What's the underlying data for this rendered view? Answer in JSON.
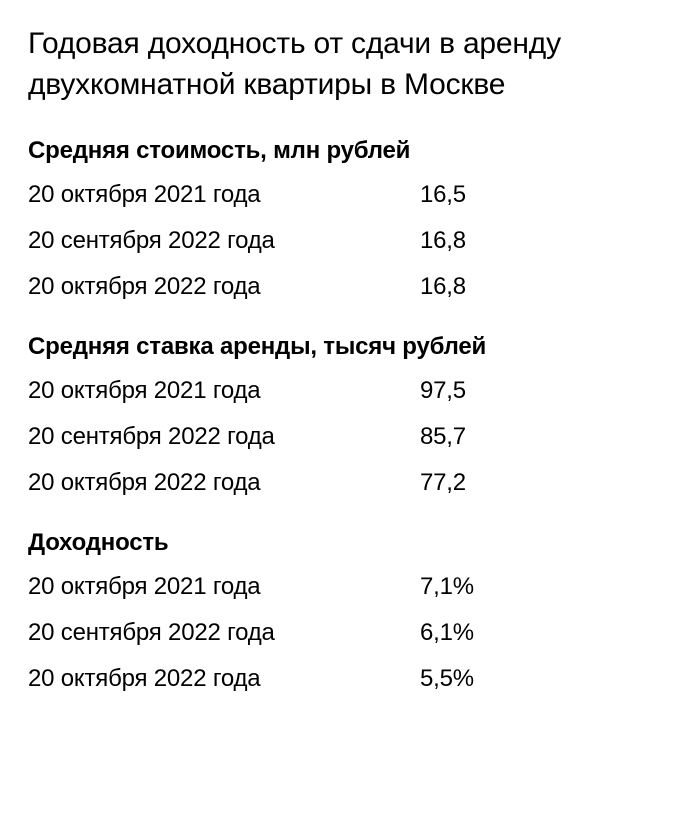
{
  "title": "Годовая доходность от сдачи в аренду двухкомнатной квартиры в Москве",
  "sections": [
    {
      "header": "Средняя стоимость, млн рублей",
      "rows": [
        {
          "label": "20 октября 2021 года",
          "value": "16,5"
        },
        {
          "label": "20 сентября 2022 года",
          "value": "16,8"
        },
        {
          "label": "20 октября 2022 года",
          "value": "16,8"
        }
      ]
    },
    {
      "header": "Средняя ставка аренды, тысяч рублей",
      "rows": [
        {
          "label": "20 октября 2021 года",
          "value": "97,5"
        },
        {
          "label": "20 сентября 2022 года",
          "value": "85,7"
        },
        {
          "label": "20 октября 2022 года",
          "value": "77,2"
        }
      ]
    },
    {
      "header": "Доходность",
      "rows": [
        {
          "label": "20 октября 2021 года",
          "value": "7,1%"
        },
        {
          "label": "20 сентября 2022 года",
          "value": "6,1%"
        },
        {
          "label": "20 октября 2022 года",
          "value": "5,5%"
        }
      ]
    }
  ],
  "styling": {
    "background_color": "#ffffff",
    "text_color": "#000000",
    "title_fontsize": 30,
    "title_fontweight": 400,
    "header_fontsize": 24,
    "header_fontweight": 700,
    "row_fontsize": 24,
    "row_fontweight": 400,
    "label_column_width": 392,
    "section_gap": 32,
    "row_gap": 18
  }
}
